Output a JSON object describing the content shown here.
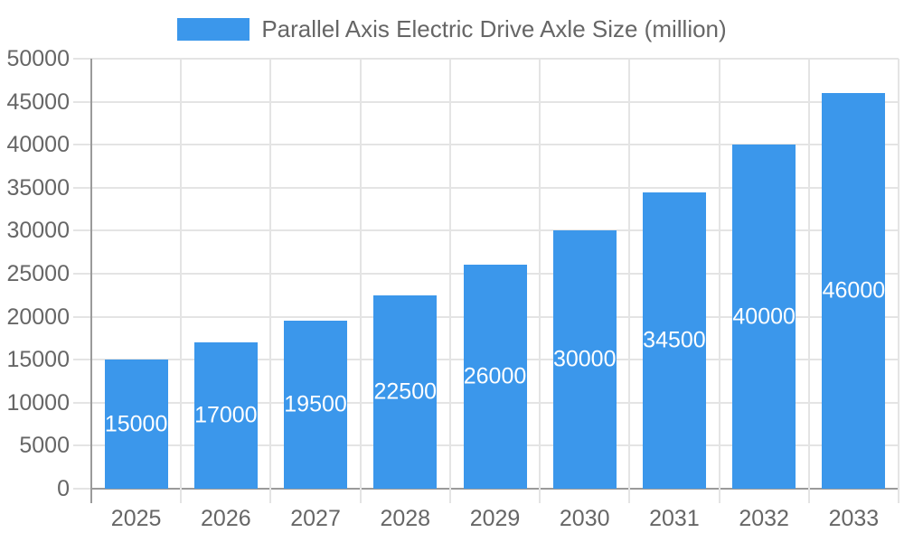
{
  "chart_data": {
    "type": "bar",
    "title": "Parallel Axis Electric Drive Axle Size (million)",
    "legend_position": "top-center",
    "categories": [
      "2025",
      "2026",
      "2027",
      "2028",
      "2029",
      "2030",
      "2031",
      "2032",
      "2033"
    ],
    "values": [
      15000,
      17000,
      19500,
      22500,
      26000,
      30000,
      34500,
      40000,
      46000
    ],
    "xlabel": "",
    "ylabel": "",
    "ylim": [
      0,
      50000
    ],
    "ytick_step": 5000,
    "grid": true,
    "value_label_position": "inside-center",
    "colors": {
      "bar": "#3B97EB",
      "bar_value_label": "#FFFFFF",
      "axis_text": "#666666",
      "grid_line": "#E4E4E4",
      "axis_line": "#9A9A9A",
      "background": "#FFFFFF"
    }
  }
}
